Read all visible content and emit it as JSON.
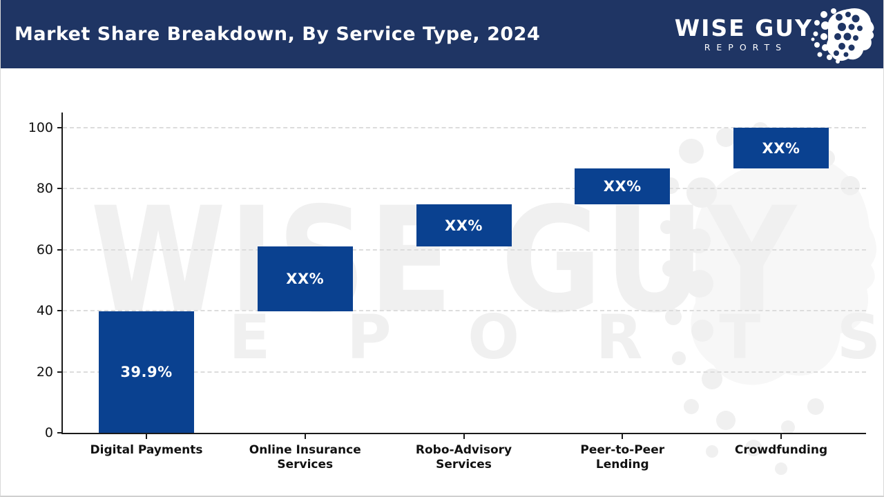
{
  "header": {
    "title": "Market Share Breakdown, By Service Type, 2024",
    "bg_color": "#1f3564",
    "logo": {
      "line1": "WISE GUY",
      "line2": "REPORTS"
    }
  },
  "watermark": {
    "line1": "WISE GUY",
    "line2": "REPORTS"
  },
  "colors": {
    "bar": "#0a4190",
    "header_navy": "#1f3564",
    "gridline": "#dcdcdc",
    "axis": "#1a1a1a",
    "watermark": "#f0f0f0"
  },
  "chart_data": {
    "type": "bar",
    "subtype": "waterfall",
    "title": "Market Share Breakdown, By Service Type, 2024",
    "xlabel": "",
    "ylabel": "",
    "ylim": [
      0,
      105
    ],
    "yticks": [
      0,
      20,
      40,
      60,
      80,
      100
    ],
    "grid": "horizontal-dashed",
    "legend": "none",
    "categories": [
      "Digital Payments",
      "Online Insurance Services",
      "Robo-Advisory Services",
      "Peer-to-Peer Lending",
      "Crowdfunding"
    ],
    "segments": [
      {
        "category": "Digital Payments",
        "display": "Digital Payments",
        "value_label": "39.9%",
        "start": 0,
        "end": 39.9
      },
      {
        "category": "Online Insurance Services",
        "display": "Online Insurance\nServices",
        "value_label": "XX%",
        "start": 39.9,
        "end": 61.0
      },
      {
        "category": "Robo-Advisory Services",
        "display": "Robo-Advisory\nServices",
        "value_label": "XX%",
        "start": 61.0,
        "end": 74.8
      },
      {
        "category": "Peer-to-Peer Lending",
        "display": "Peer-to-Peer\nLending",
        "value_label": "XX%",
        "start": 74.8,
        "end": 86.6
      },
      {
        "category": "Crowdfunding",
        "display": "Crowdfunding",
        "value_label": "XX%",
        "start": 86.6,
        "end": 100
      }
    ]
  }
}
